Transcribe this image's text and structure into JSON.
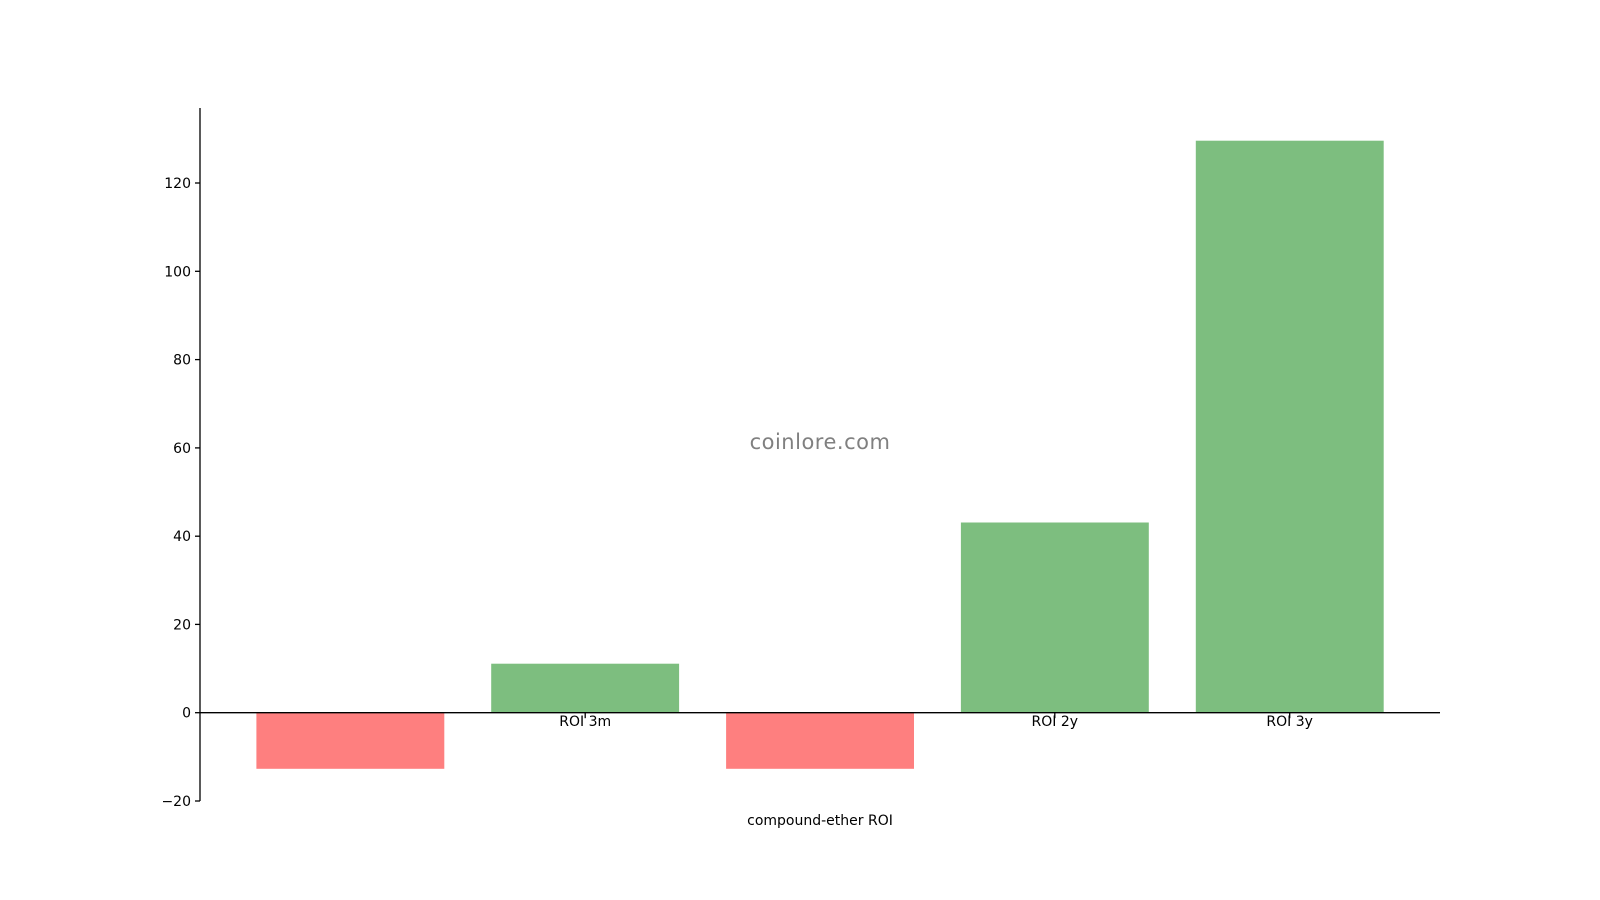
{
  "chart_data": {
    "type": "bar",
    "title": "",
    "xlabel": "compound-ether ROI",
    "ylabel": "",
    "watermark": "coinlore.com",
    "categories": [
      "",
      "ROI 3m",
      "",
      "ROI 2y",
      "ROI 3y"
    ],
    "values": [
      -12.7,
      11.1,
      -12.7,
      43.1,
      129.6
    ],
    "yticks": [
      -20,
      0,
      20,
      40,
      60,
      80,
      100,
      120
    ],
    "ylim": [
      -20,
      137
    ],
    "grid": false,
    "legend_position": "none",
    "bar_color_positive": "#7dbe7f",
    "bar_color_negative": "#fe7f7f",
    "axis_color": "#000000",
    "tick_label_color": "#000000",
    "watermark_color": "#808080"
  }
}
